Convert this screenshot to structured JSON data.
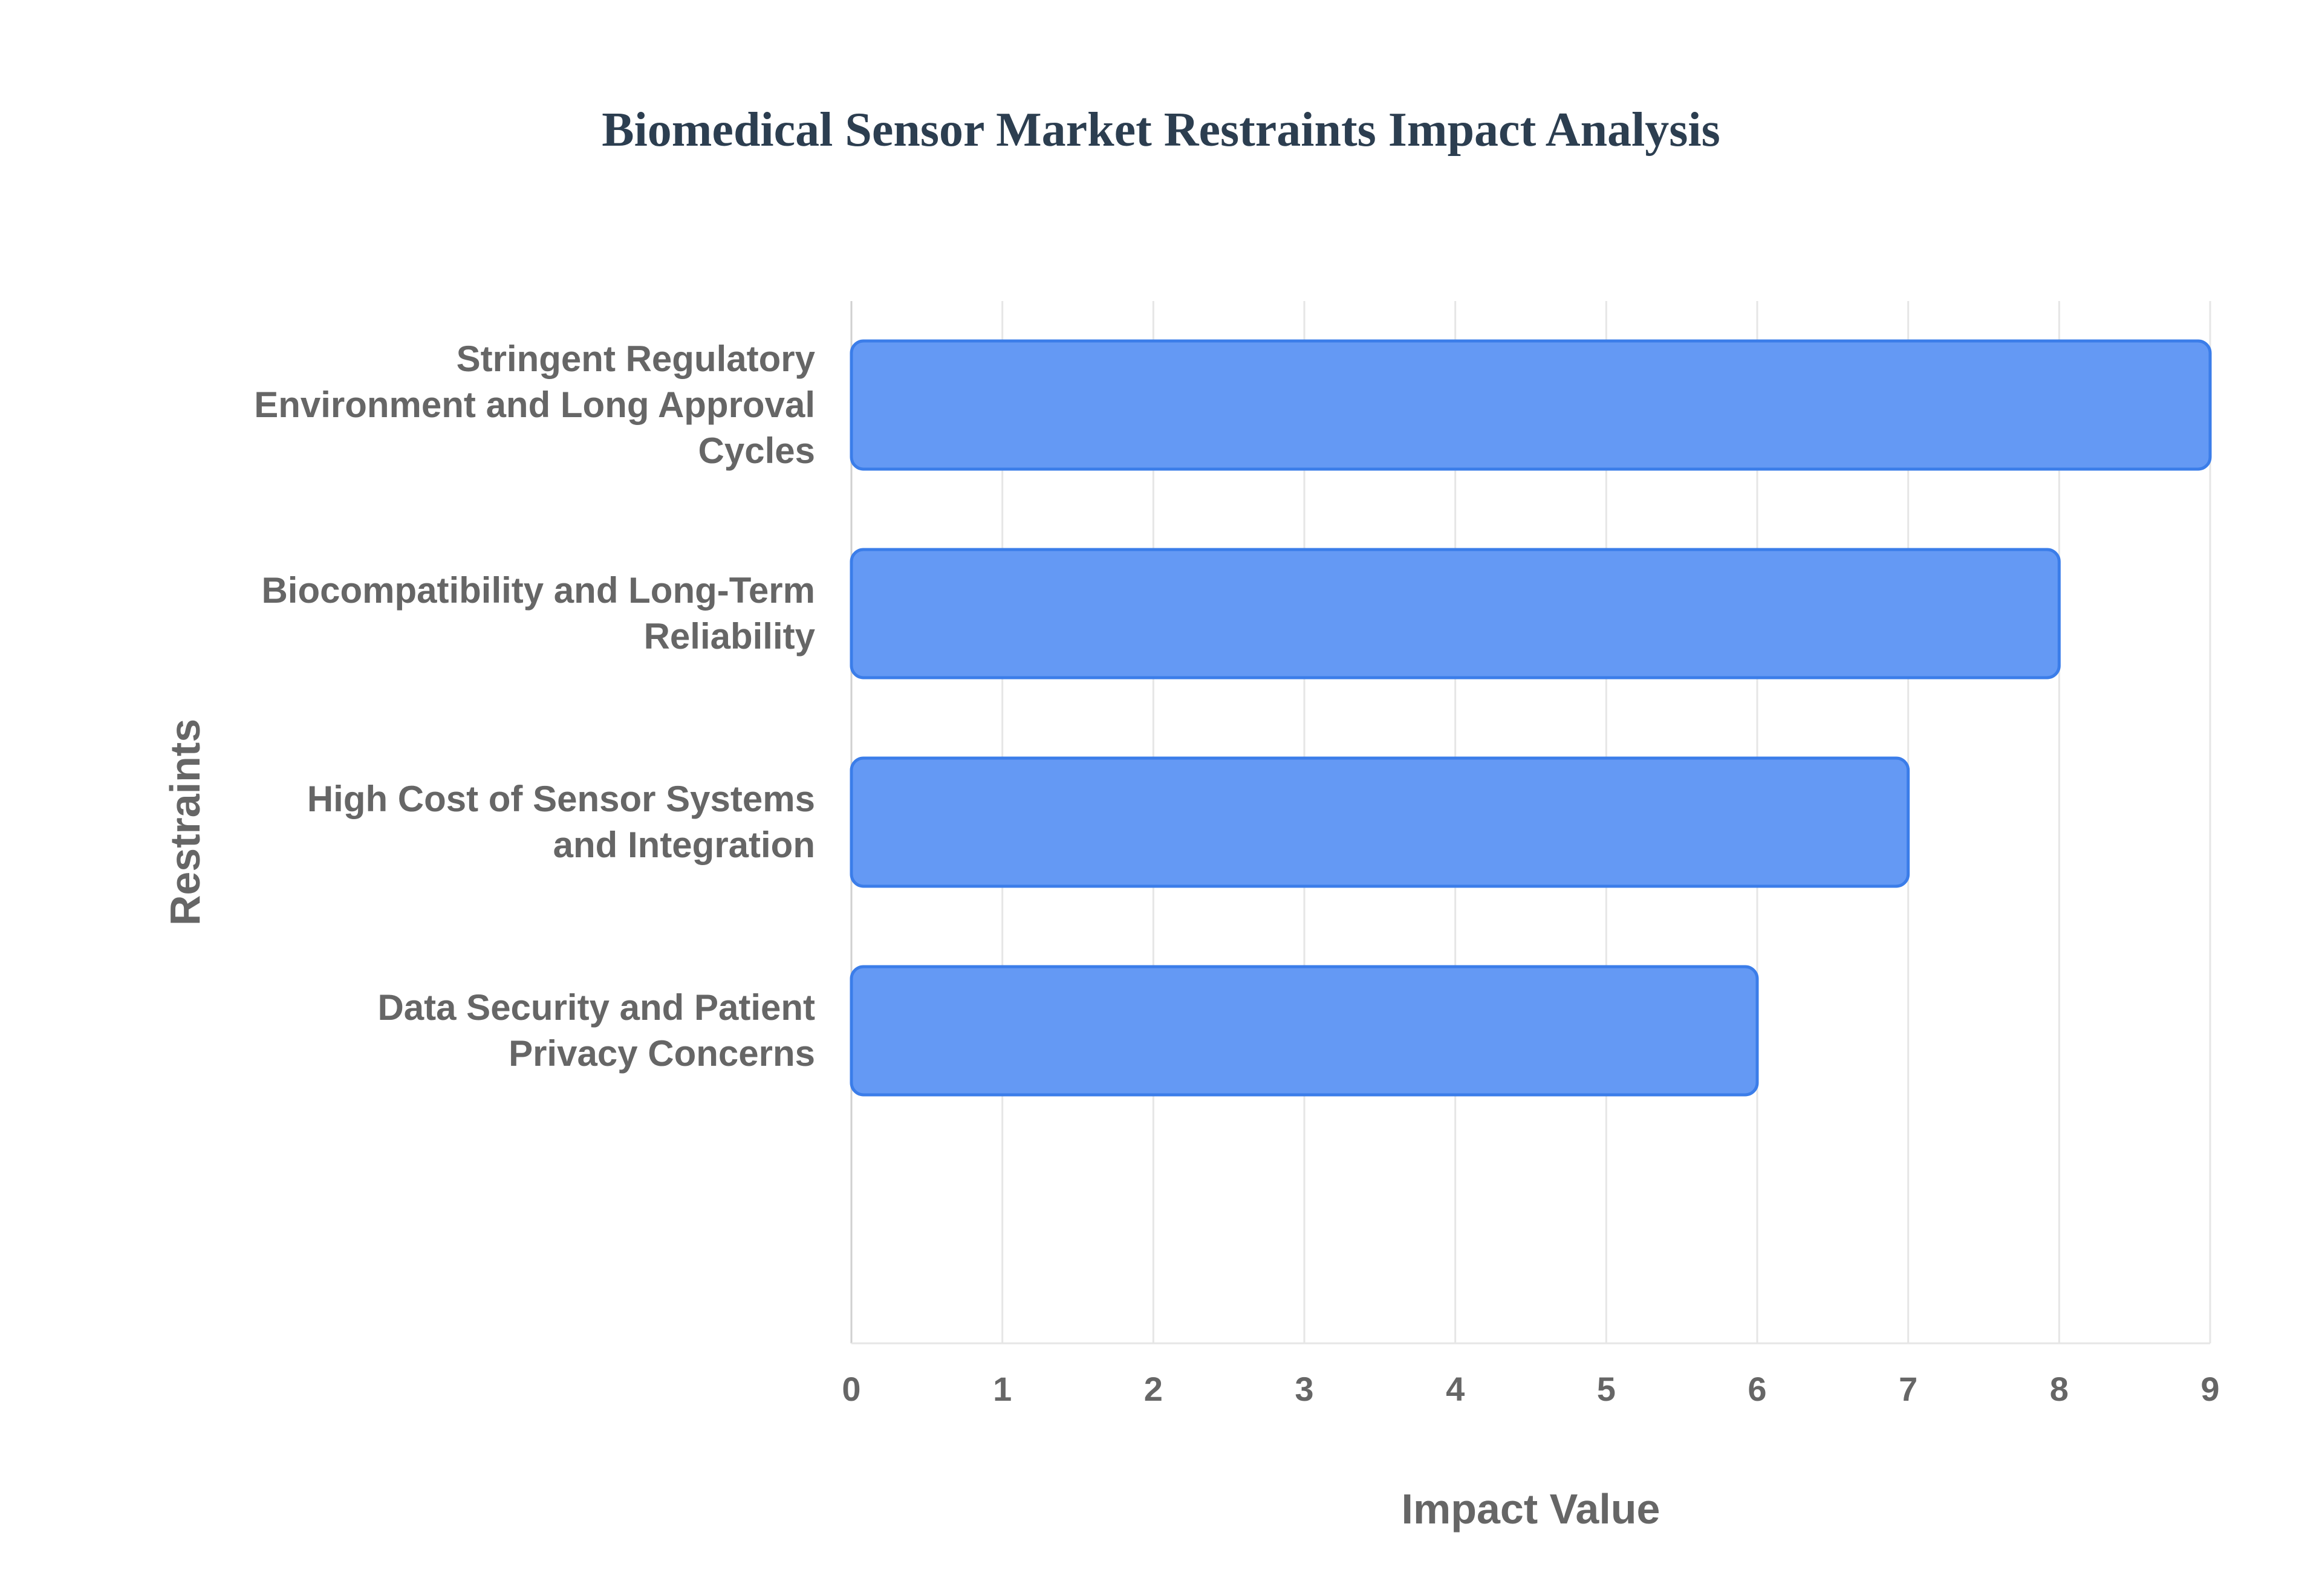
{
  "chart_data": {
    "type": "bar",
    "orientation": "horizontal",
    "title": "Biomedical Sensor Market Restraints Impact Analysis",
    "xlabel": "Impact Value",
    "ylabel": "Restraints",
    "xlim": [
      0,
      9
    ],
    "xticks": [
      "0",
      "1",
      "2",
      "3",
      "4",
      "5",
      "6",
      "7",
      "8",
      "9"
    ],
    "grid": true,
    "categories": [
      [
        "Stringent Regulatory",
        "Environment and Long Approval",
        "Cycles"
      ],
      [
        "Biocompatibility and Long-Term",
        "Reliability"
      ],
      [
        "High Cost of Sensor Systems",
        "and Integration"
      ],
      [
        "Data Security and Patient",
        "Privacy Concerns"
      ]
    ],
    "values": [
      9,
      8,
      7,
      6
    ],
    "bar_color": "#6499f4",
    "bar_border_color": "#3b7de9"
  }
}
